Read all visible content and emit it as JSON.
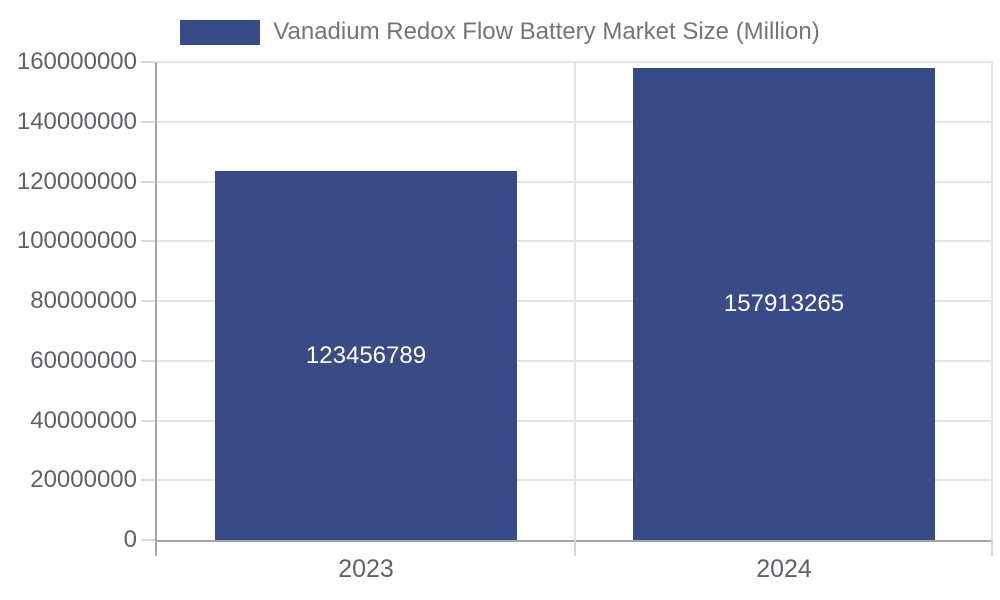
{
  "legend": {
    "series_label": "Vanadium Redox Flow Battery Market Size (Million)"
  },
  "chart_data": {
    "type": "bar",
    "title": "Vanadium Redox Flow Battery Market Size (Million)",
    "categories": [
      "2023",
      "2024"
    ],
    "series": [
      {
        "name": "Vanadium Redox Flow Battery Market Size (Million)",
        "values": [
          123456789,
          157913265
        ]
      }
    ],
    "value_labels": [
      "123456789",
      "157913265"
    ],
    "xlabel": "",
    "ylabel": "",
    "ylim": [
      0,
      160000000
    ],
    "yticks": [
      0,
      20000000,
      40000000,
      60000000,
      80000000,
      100000000,
      120000000,
      140000000,
      160000000
    ],
    "grid": true,
    "legend_position": "top-center",
    "bar_color": "#394b87",
    "value_label_color": "#ffffff"
  },
  "colors": {
    "bar": "#394b87",
    "background": "#ffffff",
    "axis_line": "#a6a6a6",
    "grid_line": "#e4e4e6",
    "axis_text": "#5f6368",
    "legend_text": "#757579"
  }
}
